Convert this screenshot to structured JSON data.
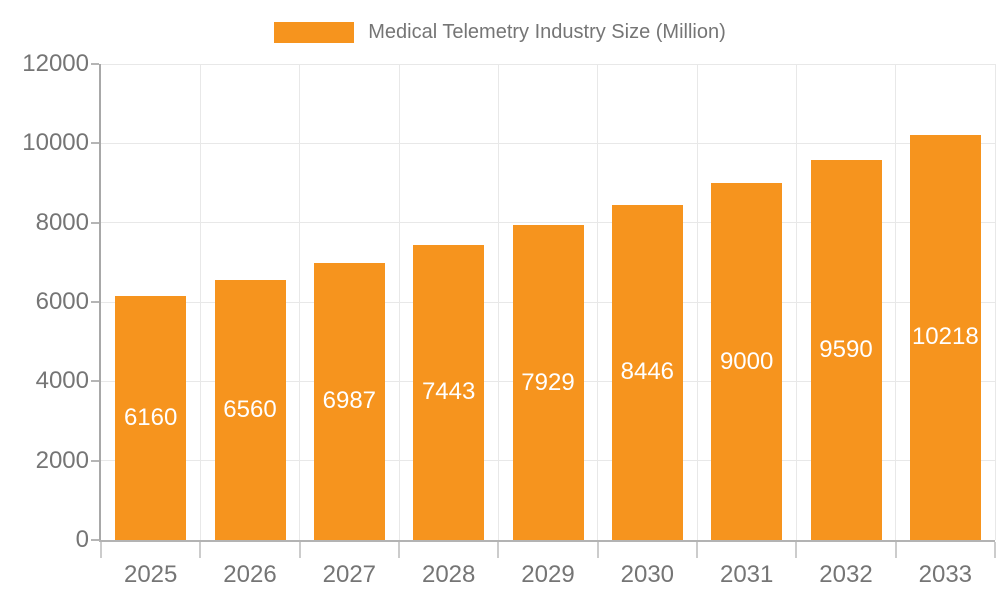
{
  "legend": {
    "label": "Medical Telemetry Industry Size (Million)"
  },
  "chart_data": {
    "type": "bar",
    "title": "Medical Telemetry Industry Size (Million)",
    "xlabel": "",
    "ylabel": "",
    "categories": [
      "2025",
      "2026",
      "2027",
      "2028",
      "2029",
      "2030",
      "2031",
      "2032",
      "2033"
    ],
    "values": [
      6160,
      6560,
      6987,
      7443,
      7929,
      8446,
      9000,
      9590,
      10218
    ],
    "yticks": [
      0,
      2000,
      4000,
      6000,
      8000,
      10000,
      12000
    ],
    "ylim": [
      0,
      12000
    ],
    "grid": true,
    "legend_position": "top-center",
    "bar_color": "#F6941E",
    "value_label_color": "#FFFFFF",
    "axis_text_color": "#757575"
  }
}
